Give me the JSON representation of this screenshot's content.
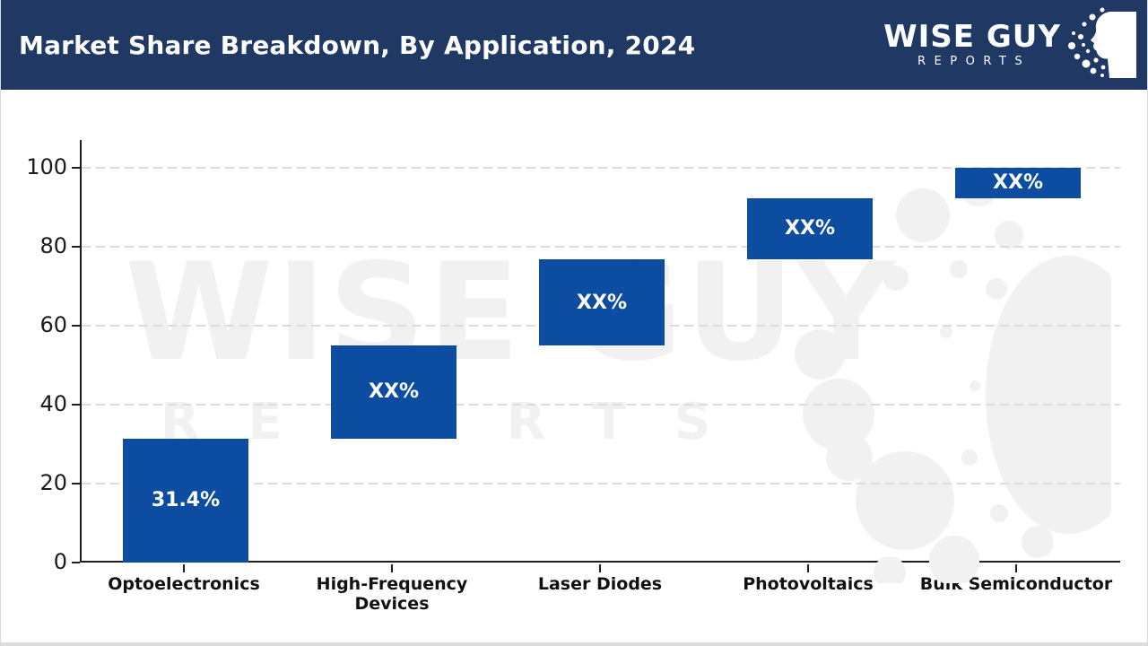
{
  "header": {
    "title": "Market Share Breakdown, By Application, 2024",
    "logo": {
      "brand": "WISE GUY",
      "sub": "REPORTS"
    }
  },
  "watermark": {
    "line1": "WISE GUY",
    "line2": "REPORTS"
  },
  "chart_data": {
    "type": "bar",
    "variant": "waterfall",
    "title": "Market Share Breakdown, By Application, 2024",
    "categories": [
      "Optoelectronics",
      "High-Frequency Devices",
      "Laser Diodes",
      "Photovoltaics",
      "Bulk Semiconductor"
    ],
    "series": [
      {
        "name": "Market share (%)",
        "segments": [
          {
            "category": "Optoelectronics",
            "start": 0,
            "end": 31.4,
            "label": "31.4%"
          },
          {
            "category": "High-Frequency Devices",
            "start": 31.4,
            "end": 55.0,
            "label": "XX%"
          },
          {
            "category": "Laser Diodes",
            "start": 55.0,
            "end": 76.8,
            "label": "XX%"
          },
          {
            "category": "Photovoltaics",
            "start": 76.8,
            "end": 92.3,
            "label": "XX%"
          },
          {
            "category": "Bulk Semiconductor",
            "start": 92.3,
            "end": 100,
            "label": "XX%"
          }
        ]
      }
    ],
    "xlabel": "",
    "ylabel": "",
    "ylim": [
      0,
      107
    ],
    "yticks": [
      0,
      20,
      40,
      60,
      80,
      100
    ],
    "grid": "horizontal-dashed",
    "legend": "none"
  },
  "colors": {
    "header_bg": "#1F3864",
    "bar": "#0C4DA2",
    "bar_label": "#ffffff",
    "grid": "#dcdcdc",
    "axis": "#1f1f1f",
    "watermark": "#f1f1f1"
  }
}
